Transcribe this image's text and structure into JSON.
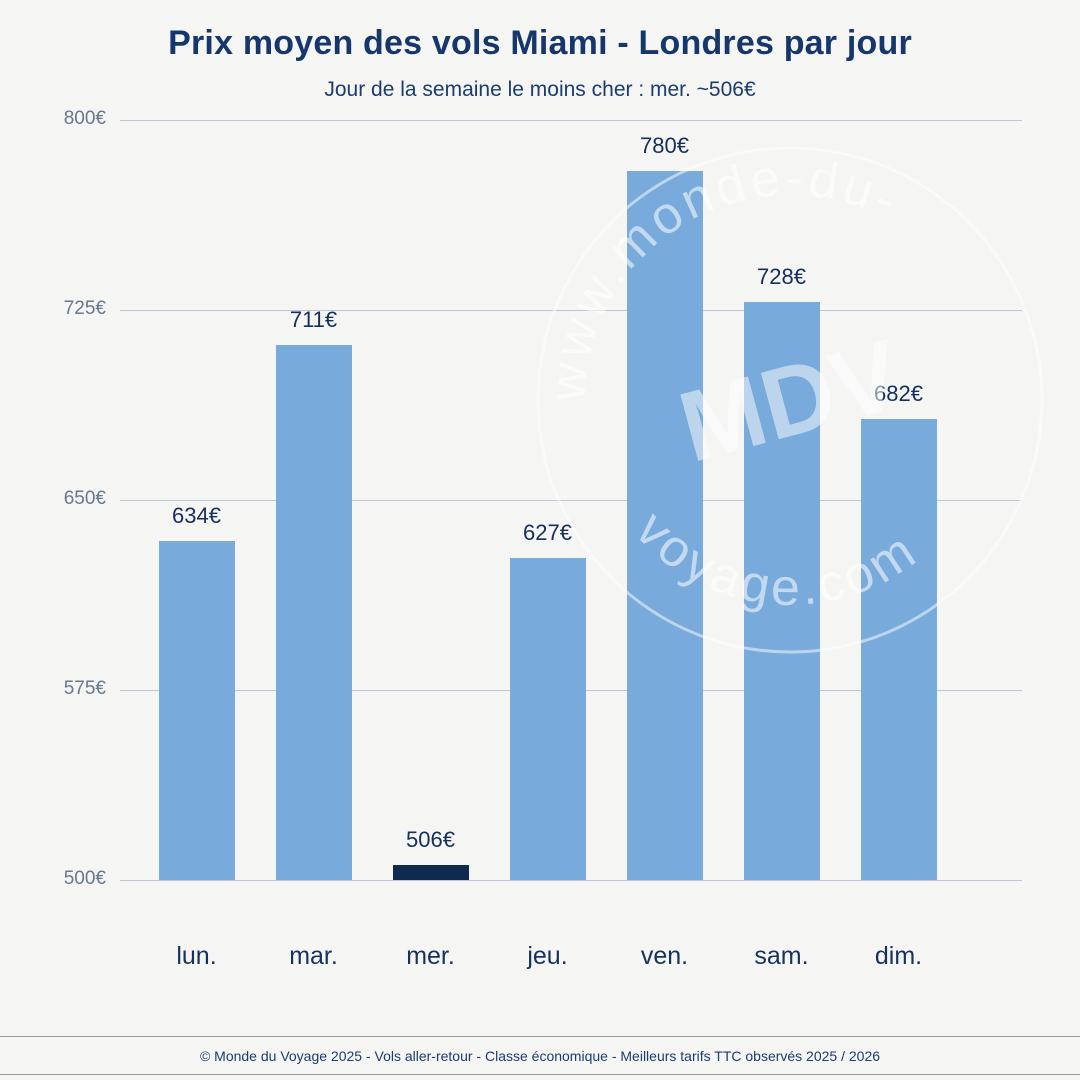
{
  "title": "Prix moyen des vols Miami - Londres par jour",
  "subtitle": "Jour de la semaine le moins cher : mer. ~506€",
  "watermark": {
    "arc_top": "www.monde-du-",
    "arc_bottom": "voyage.com",
    "center_text": "MDV"
  },
  "footer": "© Monde du Voyage 2025 - Vols aller-retour - Classe économique - Meilleurs tarifs TTC observés 2025 / 2026",
  "colors": {
    "background": "#f5f5f4",
    "bar": "#78aadb",
    "bar_highlight": "#0f2a50",
    "title_text": "#16376b",
    "gridline": "#bcc6d6",
    "ytick_text": "#68788f",
    "footer_line": "#9a9a9a"
  },
  "chart_data": {
    "type": "bar",
    "title": "Prix moyen des vols Miami - Londres par jour",
    "subtitle": "Jour de la semaine le moins cher : mer. ~506€",
    "categories": [
      "lun.",
      "mar.",
      "mer.",
      "jeu.",
      "ven.",
      "sam.",
      "dim."
    ],
    "values": [
      634,
      711,
      506,
      627,
      780,
      728,
      682
    ],
    "value_labels": [
      "634€",
      "711€",
      "506€",
      "627€",
      "780€",
      "728€",
      "682€"
    ],
    "xlabel": "",
    "ylabel": "",
    "ylim": [
      500,
      800
    ],
    "yticks": [
      500,
      575,
      650,
      725,
      800
    ],
    "ytick_labels": [
      "500€",
      "575€",
      "650€",
      "725€",
      "800€"
    ],
    "grid": true,
    "legend": false,
    "highlight_index": 2,
    "bar_color": "#78aadb",
    "highlight_color": "#0f2a50"
  }
}
